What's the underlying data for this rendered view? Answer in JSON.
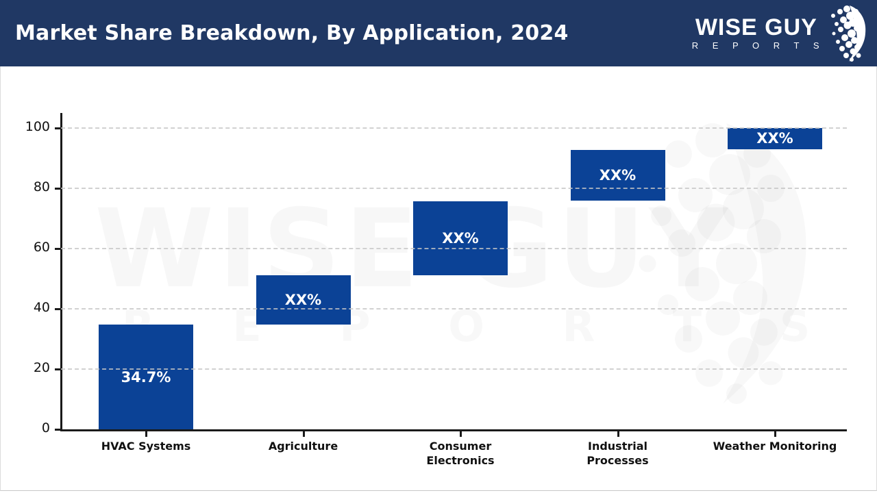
{
  "header": {
    "title": "Market Share Breakdown, By Application, 2024",
    "brand": {
      "line1": "WISE GUY",
      "line2": "R E P O R T S",
      "face_icon": "dotted-head-profile-icon"
    }
  },
  "watermark": {
    "line1": "WISE GUY",
    "line2": "R E P O R T S",
    "face_icon": "dotted-head-profile-icon"
  },
  "colors": {
    "header_bg": "#203864",
    "bar": "#0b4296",
    "bar_label": "#ffffff",
    "grid": "#c5c5c5",
    "axis": "#1a1a1a",
    "tick_text": "#111111"
  },
  "chart_data": {
    "type": "bar",
    "subtype": "waterfall",
    "title": "Market Share Breakdown, By Application, 2024",
    "categories": [
      "HVAC Systems",
      "Agriculture",
      "Consumer Electronics",
      "Industrial Processes",
      "Weather Monitoring"
    ],
    "segments": [
      {
        "category": "HVAC Systems",
        "label_lines": [
          "HVAC Systems"
        ],
        "start": 0,
        "end": 34.7,
        "value": 34.7,
        "label": "34.7%"
      },
      {
        "category": "Agriculture",
        "label_lines": [
          "Agriculture"
        ],
        "start": 34.7,
        "end": 51.1,
        "value": 16.4,
        "label": "XX%"
      },
      {
        "category": "Consumer Electronics",
        "label_lines": [
          "Consumer",
          "Electronics"
        ],
        "start": 51.1,
        "end": 75.7,
        "value": 24.6,
        "label": "XX%"
      },
      {
        "category": "Industrial Processes",
        "label_lines": [
          "Industrial",
          "Processes"
        ],
        "start": 75.9,
        "end": 92.7,
        "value": 16.8,
        "label": "XX%"
      },
      {
        "category": "Weather Monitoring",
        "label_lines": [
          "Weather Monitoring"
        ],
        "start": 93.0,
        "end": 100.0,
        "value": 7.0,
        "label": "XX%"
      }
    ],
    "y_ticks": [
      0,
      20,
      40,
      60,
      80,
      100
    ],
    "ylim": [
      0,
      100
    ],
    "xlabel": "",
    "ylabel": "",
    "grid": "horizontal-dashed",
    "legend": "none",
    "bar_color": "#0b4296",
    "label_color": "#ffffff"
  }
}
